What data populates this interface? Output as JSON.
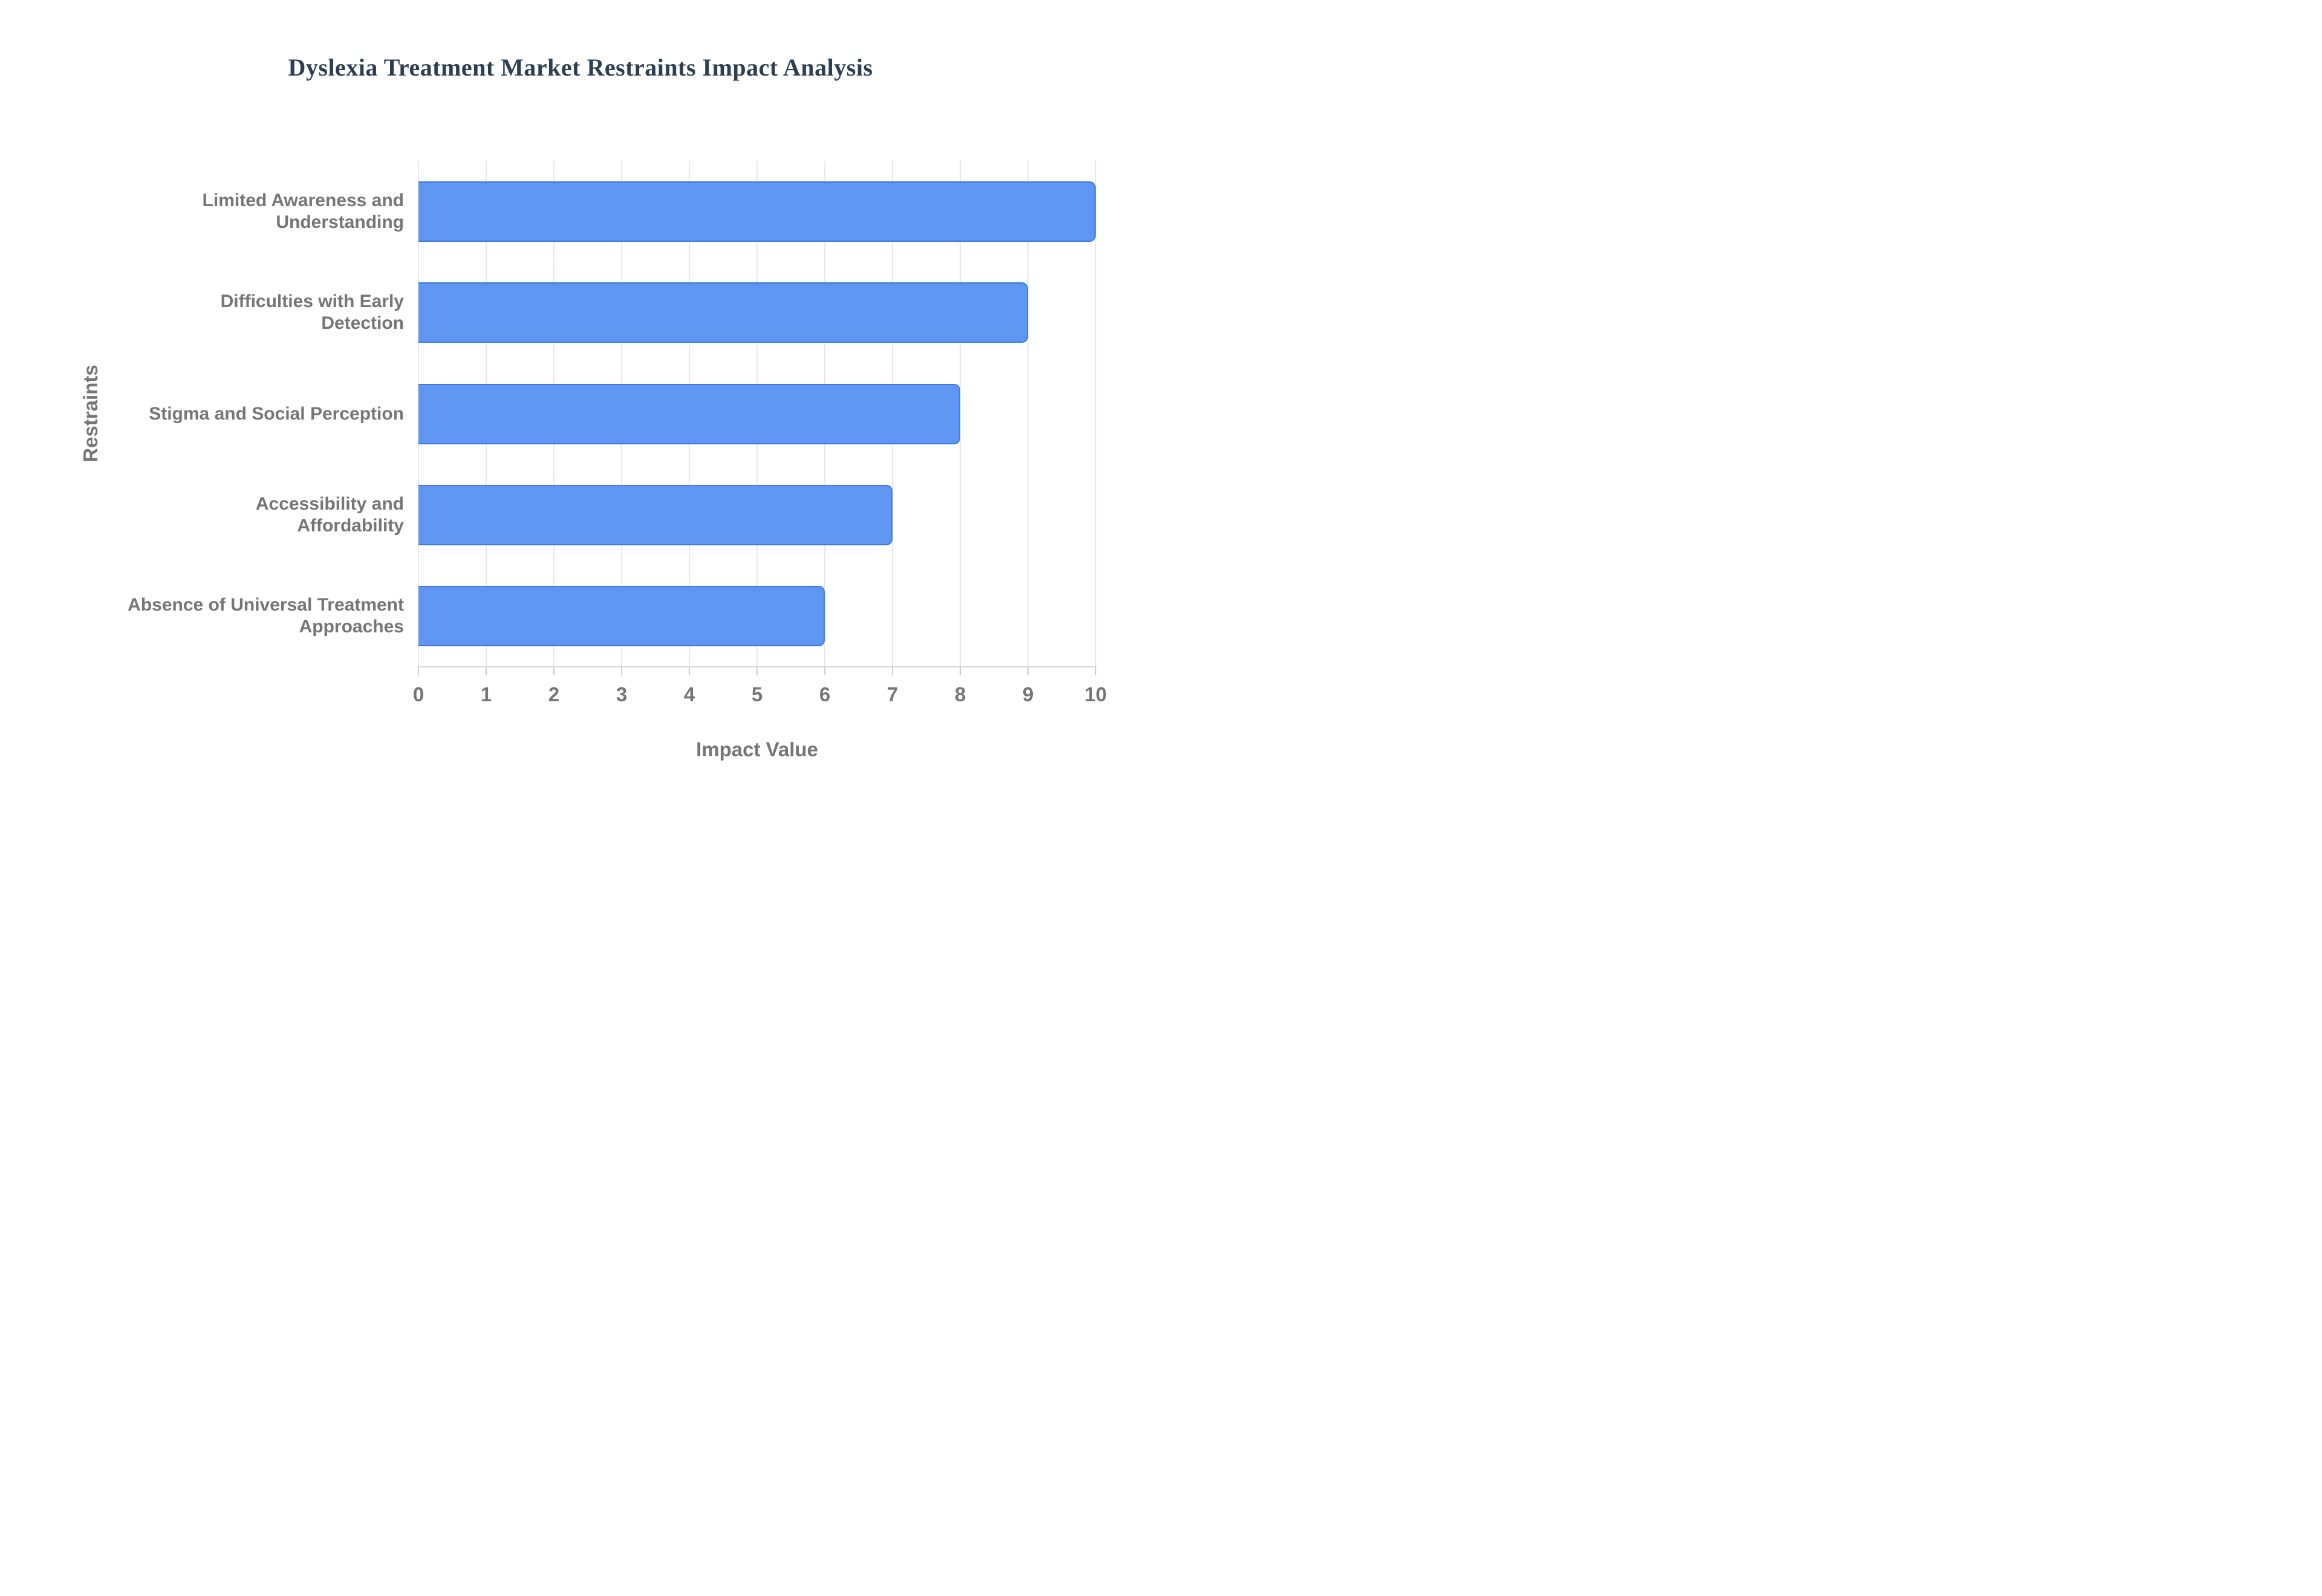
{
  "page": {
    "background": "#ffffff"
  },
  "chart_data": {
    "type": "bar",
    "orientation": "horizontal",
    "title": "Dyslexia Treatment Market Restraints Impact Analysis",
    "categories": [
      "Limited Awareness and Understanding",
      "Difficulties with Early Detection",
      "Stigma and Social Perception",
      "Accessibility and Affordability",
      "Absence of Universal Treatment Approaches"
    ],
    "label_lines": [
      [
        "Limited Awareness and",
        "Understanding"
      ],
      [
        "Difficulties with Early",
        "Detection"
      ],
      [
        "Stigma and Social Perception"
      ],
      [
        "Accessibility and",
        "Affordability"
      ],
      [
        "Absence of Universal Treatment",
        "Approaches"
      ]
    ],
    "values": [
      10,
      9,
      8,
      7,
      6
    ],
    "xlabel": "Impact Value",
    "ylabel": "Restraints",
    "xlim": [
      0,
      10
    ],
    "x_ticks": [
      "0",
      "1",
      "2",
      "3",
      "4",
      "5",
      "6",
      "7",
      "8",
      "9",
      "10"
    ],
    "grid": true,
    "legend": "none",
    "colors": {
      "bar_fill": "#5f96f2",
      "bar_border": "#3d7be0",
      "title_text": "#2c3e50",
      "label_text": "#757575",
      "gridline": "#e9e9e9",
      "axis_baseline": "#dadada",
      "tick_stub": "#cfcfcf",
      "background": "#ffffff"
    }
  }
}
